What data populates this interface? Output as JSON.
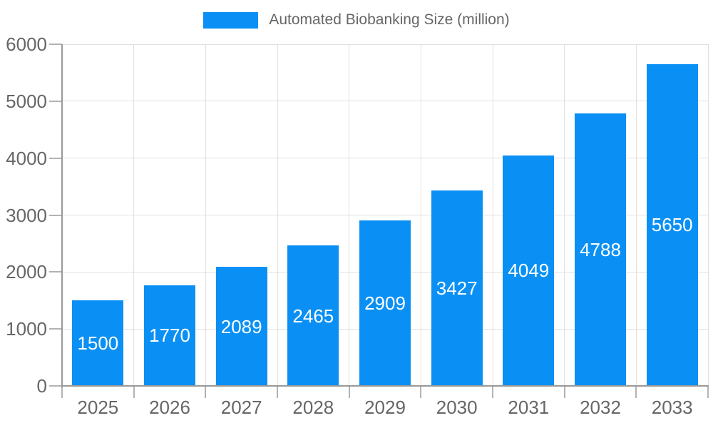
{
  "chart_data": {
    "type": "bar",
    "title": "Automated Biobanking Size (million)",
    "legend": {
      "label": "Automated Biobanking Size (million)",
      "position": "top"
    },
    "categories": [
      "2025",
      "2026",
      "2027",
      "2028",
      "2029",
      "2030",
      "2031",
      "2032",
      "2033"
    ],
    "values": [
      1500,
      1770,
      2089,
      2465,
      2909,
      3427,
      4049,
      4788,
      5650
    ],
    "value_labels": [
      "1500",
      "1770",
      "2089",
      "2465",
      "2909",
      "3427",
      "4049",
      "4788",
      "5650"
    ],
    "xlabel": "",
    "ylabel": "",
    "ylim": [
      0,
      6000
    ],
    "ytick_step": 1000,
    "ytick_labels": [
      "0",
      "1000",
      "2000",
      "3000",
      "4000",
      "5000",
      "6000"
    ],
    "grid": true,
    "colors": {
      "bar": "#0A90F5",
      "grid": "#E0E0E0",
      "axis": "#999999",
      "tick": "#B3B3B3",
      "tick_label": "#666666",
      "value_label": "#FFFFFF",
      "background": "#FFFFFF"
    }
  }
}
